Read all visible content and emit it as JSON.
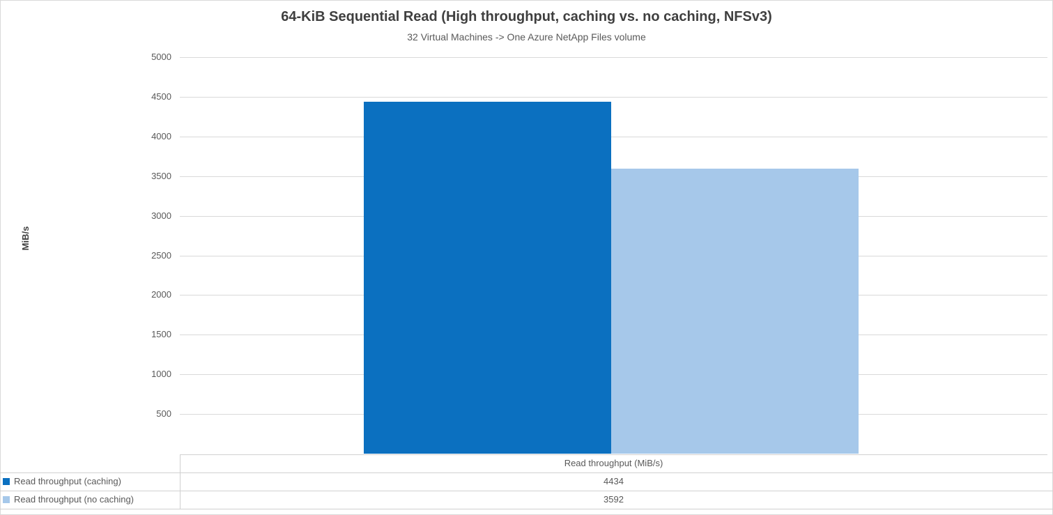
{
  "chart_data": {
    "type": "bar",
    "title": "64-KiB Sequential Read (High throughput, caching vs. no caching, NFSv3)",
    "subtitle": "32 Virtual Machines -> One Azure NetApp Files volume",
    "xlabel": "",
    "ylabel": "MiB/s",
    "ylim": [
      0,
      5000
    ],
    "yticks": [
      5000,
      4500,
      4000,
      3500,
      3000,
      2500,
      2000,
      1500,
      1000,
      500
    ],
    "grid": true,
    "legend_position": "bottom-left-data-table",
    "categories": [
      "Read throughput (MiB/s)"
    ],
    "series": [
      {
        "name": "Read throughput (caching)",
        "values": [
          4434
        ],
        "color": "#0b70c0"
      },
      {
        "name": "Read throughput (no caching)",
        "values": [
          3592
        ],
        "color": "#a6c8ea"
      }
    ],
    "data_table": {
      "column_header": "Read throughput (MiB/s)",
      "rows": [
        {
          "swatch_color": "#0b70c0",
          "label": "Read throughput (caching)",
          "value": "4434"
        },
        {
          "swatch_color": "#a6c8ea",
          "label": "Read throughput (no caching)",
          "value": "3592"
        }
      ]
    },
    "colors": {
      "gridline": "#d9d9d9",
      "table_border": "#d0d0d0",
      "title_text": "#3f3f3f",
      "body_text": "#595959"
    }
  }
}
